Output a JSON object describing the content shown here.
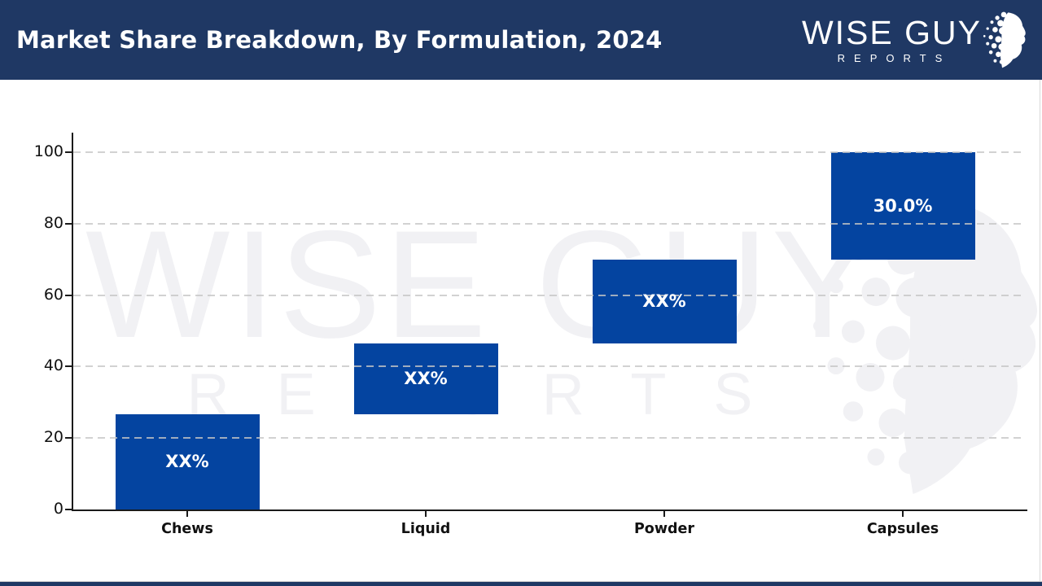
{
  "brand": {
    "name": "WISE GUY",
    "subtitle": "REPORTS"
  },
  "header": {
    "title": "Market Share Breakdown, By Formulation, 2024"
  },
  "chart_data": {
    "type": "bar",
    "variant": "waterfall (floating stacked segments)",
    "title": "Market Share Breakdown, By Formulation, 2024",
    "categories": [
      "Chews",
      "Liquid",
      "Powder",
      "Capsules"
    ],
    "segments": [
      {
        "category": "Chews",
        "start": 0,
        "end": 26.7,
        "label": "XX%"
      },
      {
        "category": "Liquid",
        "start": 26.7,
        "end": 46.5,
        "label": "XX%"
      },
      {
        "category": "Powder",
        "start": 46.5,
        "end": 70.0,
        "label": "XX%"
      },
      {
        "category": "Capsules",
        "start": 70.0,
        "end": 100.0,
        "label": "30.0%"
      }
    ],
    "yticks": [
      0,
      20,
      40,
      60,
      80,
      100
    ],
    "ylim": [
      0,
      105
    ],
    "xlabel": "",
    "ylabel": "",
    "grid": "horizontal dashed, drawn over bars",
    "legend": "none",
    "bar_color": "#0444a0"
  },
  "colors": {
    "navy": "#1f3864",
    "bar": "#0444a0",
    "grid": "#d6d6d6",
    "axis": "#1a1a1a",
    "watermark": "#f1f1f4",
    "title_text": "#ffffff",
    "tick_text": "#111111"
  }
}
